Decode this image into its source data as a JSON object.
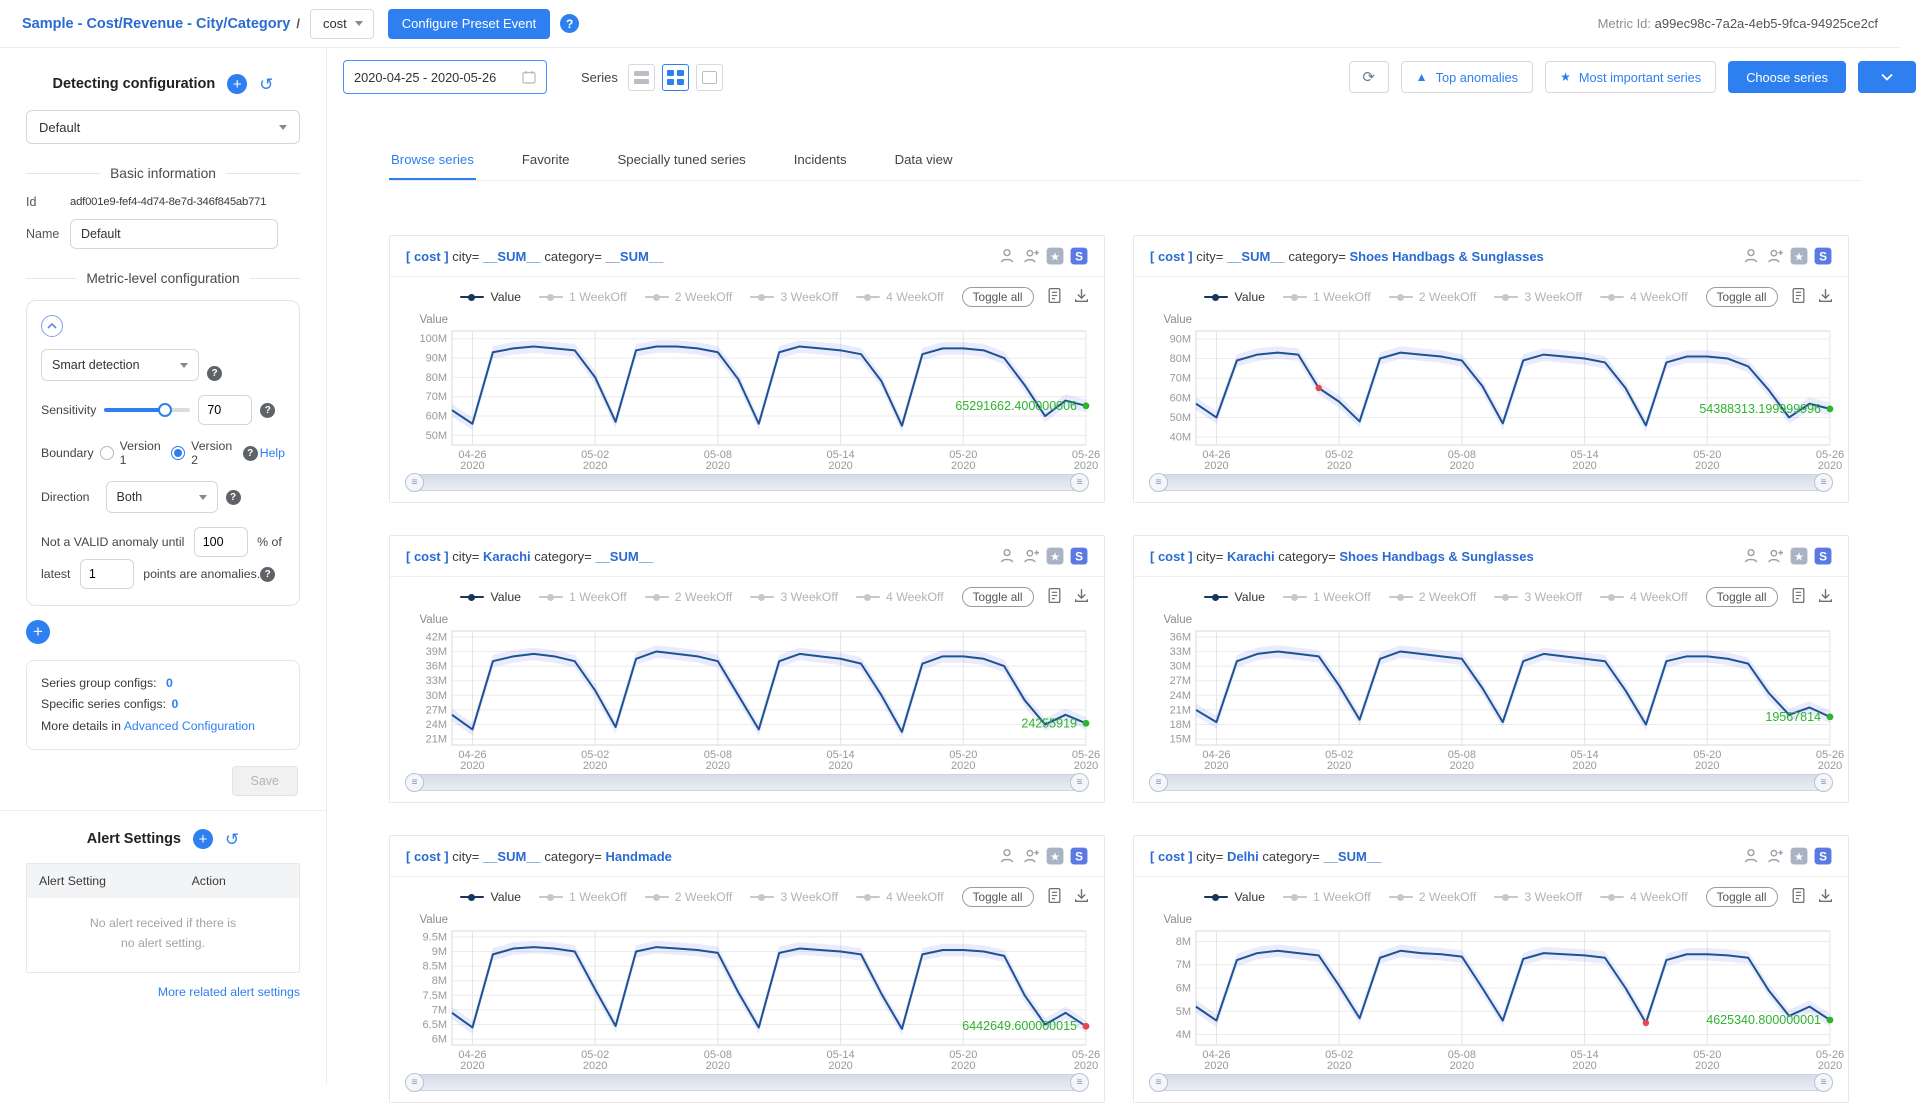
{
  "header": {
    "breadcrumb": "Sample - Cost/Revenue - City/Category",
    "slash": "/",
    "metric_selector": "cost",
    "configure_button": "Configure Preset Event",
    "help_icon": "?",
    "metric_id_label": "Metric Id:",
    "metric_id_value": "a99ec98c-7a2a-4eb5-9fca-94925ce2cf"
  },
  "sidebar": {
    "detecting_title": "Detecting configuration",
    "plus_icon": "+",
    "history_icon": "↺",
    "config_select": "Default",
    "basic_info_title": "Basic information",
    "id_label": "Id",
    "id_value": "adf001e9-fef4-4d74-8e7d-346f845ab771",
    "name_label": "Name",
    "name_value": "Default",
    "metric_config_title": "Metric-level configuration",
    "detection_select": "Smart detection",
    "q_icon": "?",
    "sensitivity_label": "Sensitivity",
    "sensitivity_value": "70",
    "boundary_label": "Boundary",
    "version1": "Version 1",
    "version2": "Version 2",
    "help_link": "Help",
    "direction_label": "Direction",
    "direction_value": "Both",
    "valid_text_1": "Not a VALID anomaly until",
    "valid_pct": "100",
    "valid_text_2": "% of",
    "valid_text_3": "latest",
    "valid_points": "1",
    "valid_text_4": "points are anomalies.",
    "series_group_label": "Series group configs:",
    "series_group_value": "0",
    "specific_series_label": "Specific series configs:",
    "specific_series_value": "0",
    "more_details": "More details in",
    "advanced_link": "Advanced Configuration",
    "save_button": "Save",
    "alert_title": "Alert Settings",
    "alert_col_1": "Alert Setting",
    "alert_col_2": "Action",
    "alert_empty_1": "No alert received if there is",
    "alert_empty_2": "no alert setting.",
    "alert_more_link": "More related alert settings"
  },
  "toolbar": {
    "date_range": "2020-04-25 - 2020-05-26",
    "series_label": "Series",
    "refresh_icon": "⟳",
    "top_anomalies_icon": "▲",
    "top_anomalies": "Top anomalies",
    "most_important_icon": "★",
    "most_important": "Most important series",
    "choose_series": "Choose series"
  },
  "tabs": [
    {
      "label": "Browse series",
      "active": true
    },
    {
      "label": "Favorite",
      "active": false
    },
    {
      "label": "Specially tuned series",
      "active": false
    },
    {
      "label": "Incidents",
      "active": false
    },
    {
      "label": "Data view",
      "active": false
    }
  ],
  "legend": {
    "items": [
      {
        "label": "Value",
        "color": "#16365c",
        "text_color": "#333333"
      },
      {
        "label": "1 WeekOff",
        "color": "#c8c8c8",
        "text_color": "#b3b3b3"
      },
      {
        "label": "2 WeekOff",
        "color": "#c8c8c8",
        "text_color": "#b3b3b3"
      },
      {
        "label": "3 WeekOff",
        "color": "#c8c8c8",
        "text_color": "#b3b3b3"
      },
      {
        "label": "4 WeekOff",
        "color": "#c8c8c8",
        "text_color": "#b3b3b3"
      }
    ],
    "toggle_all": "Toggle all"
  },
  "colors": {
    "accent": "#2e7ff0",
    "line": "#1d5393",
    "band": "#7d84ed",
    "green": "#2db32d",
    "red": "#e5484d"
  },
  "chart_data": [
    {
      "type": "line",
      "title": "[ cost ]",
      "dims": [
        {
          "key": "city=",
          "value": "__SUM__"
        },
        {
          "key": "category=",
          "value": "__SUM__"
        }
      ],
      "ylabel": "Value",
      "yticks": [
        {
          "label": "100M",
          "v": 100
        },
        {
          "label": "90M",
          "v": 90
        },
        {
          "label": "80M",
          "v": 80
        },
        {
          "label": "70M",
          "v": 70
        },
        {
          "label": "60M",
          "v": 60
        },
        {
          "label": "50M",
          "v": 50
        }
      ],
      "ylim": [
        45,
        104
      ],
      "xticks": [
        {
          "label": "04-26",
          "year": "2020",
          "i": 1
        },
        {
          "label": "05-02",
          "year": "2020",
          "i": 7
        },
        {
          "label": "05-08",
          "year": "2020",
          "i": 13
        },
        {
          "label": "05-14",
          "year": "2020",
          "i": 19
        },
        {
          "label": "05-20",
          "year": "2020",
          "i": 25
        },
        {
          "label": "05-26",
          "year": "2020",
          "i": 31
        }
      ],
      "values": [
        63,
        56,
        93,
        95,
        96,
        95,
        94,
        80,
        57,
        94,
        96,
        96,
        95,
        93,
        79,
        56,
        93,
        96,
        95,
        94,
        92,
        78,
        55,
        92,
        95,
        95,
        94,
        90,
        76,
        60,
        68,
        65.2916624
      ],
      "value_label": "65291662.400000006",
      "end_dot_color": "#2db32d",
      "anomalies": []
    },
    {
      "type": "line",
      "title": "[ cost ]",
      "dims": [
        {
          "key": "city=",
          "value": "__SUM__"
        },
        {
          "key": "category=",
          "value": "Shoes Handbags & Sunglasses"
        }
      ],
      "ylabel": "Value",
      "yticks": [
        {
          "label": "90M",
          "v": 90
        },
        {
          "label": "80M",
          "v": 80
        },
        {
          "label": "70M",
          "v": 70
        },
        {
          "label": "60M",
          "v": 60
        },
        {
          "label": "50M",
          "v": 50
        },
        {
          "label": "40M",
          "v": 40
        }
      ],
      "ylim": [
        36,
        94
      ],
      "xticks": [
        {
          "label": "04-26",
          "year": "2020",
          "i": 1
        },
        {
          "label": "05-02",
          "year": "2020",
          "i": 7
        },
        {
          "label": "05-08",
          "year": "2020",
          "i": 13
        },
        {
          "label": "05-14",
          "year": "2020",
          "i": 19
        },
        {
          "label": "05-20",
          "year": "2020",
          "i": 25
        },
        {
          "label": "05-26",
          "year": "2020",
          "i": 31
        }
      ],
      "values": [
        57,
        50,
        79,
        82,
        83,
        82,
        65,
        58,
        48,
        80,
        83,
        82,
        81,
        79,
        66,
        47,
        79,
        82,
        81,
        80,
        78,
        65,
        46,
        78,
        81,
        81,
        80,
        76,
        64,
        50,
        57,
        54.3883132
      ],
      "value_label": "54388313.199999996",
      "end_dot_color": "#2db32d",
      "anomalies": [
        6
      ]
    },
    {
      "type": "line",
      "title": "[ cost ]",
      "dims": [
        {
          "key": "city=",
          "value": "Karachi"
        },
        {
          "key": "category=",
          "value": "__SUM__"
        }
      ],
      "ylabel": "Value",
      "yticks": [
        {
          "label": "42M",
          "v": 42
        },
        {
          "label": "39M",
          "v": 39
        },
        {
          "label": "36M",
          "v": 36
        },
        {
          "label": "33M",
          "v": 33
        },
        {
          "label": "30M",
          "v": 30
        },
        {
          "label": "27M",
          "v": 27
        },
        {
          "label": "24M",
          "v": 24
        },
        {
          "label": "21M",
          "v": 21
        }
      ],
      "ylim": [
        19.8,
        43.2
      ],
      "xticks": [
        {
          "label": "04-26",
          "year": "2020",
          "i": 1
        },
        {
          "label": "05-02",
          "year": "2020",
          "i": 7
        },
        {
          "label": "05-08",
          "year": "2020",
          "i": 13
        },
        {
          "label": "05-14",
          "year": "2020",
          "i": 19
        },
        {
          "label": "05-20",
          "year": "2020",
          "i": 25
        },
        {
          "label": "05-26",
          "year": "2020",
          "i": 31
        }
      ],
      "values": [
        26,
        23,
        37,
        38,
        38.5,
        38,
        37,
        31,
        23.5,
        37.5,
        39,
        38.5,
        38,
        37,
        30,
        23,
        37,
        38.5,
        38,
        37.5,
        36.5,
        30,
        22.5,
        36.5,
        38,
        38,
        37.5,
        36,
        29,
        24,
        26,
        24.255919
      ],
      "value_label": "24255919",
      "end_dot_color": "#2db32d",
      "anomalies": []
    },
    {
      "type": "line",
      "title": "[ cost ]",
      "dims": [
        {
          "key": "city=",
          "value": "Karachi"
        },
        {
          "key": "category=",
          "value": "Shoes Handbags & Sunglasses"
        }
      ],
      "ylabel": "Value",
      "yticks": [
        {
          "label": "36M",
          "v": 36
        },
        {
          "label": "33M",
          "v": 33
        },
        {
          "label": "30M",
          "v": 30
        },
        {
          "label": "27M",
          "v": 27
        },
        {
          "label": "24M",
          "v": 24
        },
        {
          "label": "21M",
          "v": 21
        },
        {
          "label": "18M",
          "v": 18
        },
        {
          "label": "15M",
          "v": 15
        }
      ],
      "ylim": [
        13.8,
        37.2
      ],
      "xticks": [
        {
          "label": "04-26",
          "year": "2020",
          "i": 1
        },
        {
          "label": "05-02",
          "year": "2020",
          "i": 7
        },
        {
          "label": "05-08",
          "year": "2020",
          "i": 13
        },
        {
          "label": "05-14",
          "year": "2020",
          "i": 19
        },
        {
          "label": "05-20",
          "year": "2020",
          "i": 25
        },
        {
          "label": "05-26",
          "year": "2020",
          "i": 31
        }
      ],
      "values": [
        21,
        18.5,
        31,
        32.5,
        33,
        32.5,
        32,
        26,
        19,
        31.5,
        33,
        32.5,
        32,
        31.5,
        25.5,
        18.5,
        31,
        32.5,
        32,
        31.5,
        31,
        25,
        18,
        31,
        32,
        32,
        31.5,
        30.5,
        24.5,
        20,
        21.5,
        19.567814
      ],
      "value_label": "19567814",
      "end_dot_color": "#2db32d",
      "anomalies": []
    },
    {
      "type": "line",
      "title": "[ cost ]",
      "dims": [
        {
          "key": "city=",
          "value": "__SUM__"
        },
        {
          "key": "category=",
          "value": "Handmade"
        }
      ],
      "ylabel": "Value",
      "yticks": [
        {
          "label": "9.5M",
          "v": 9.5
        },
        {
          "label": "9M",
          "v": 9
        },
        {
          "label": "8.5M",
          "v": 8.5
        },
        {
          "label": "8M",
          "v": 8
        },
        {
          "label": "7.5M",
          "v": 7.5
        },
        {
          "label": "7M",
          "v": 7
        },
        {
          "label": "6.5M",
          "v": 6.5
        },
        {
          "label": "6M",
          "v": 6
        }
      ],
      "ylim": [
        5.8,
        9.7
      ],
      "xticks": [
        {
          "label": "04-26",
          "year": "2020",
          "i": 1
        },
        {
          "label": "05-02",
          "year": "2020",
          "i": 7
        },
        {
          "label": "05-08",
          "year": "2020",
          "i": 13
        },
        {
          "label": "05-14",
          "year": "2020",
          "i": 19
        },
        {
          "label": "05-20",
          "year": "2020",
          "i": 25
        },
        {
          "label": "05-26",
          "year": "2020",
          "i": 31
        }
      ],
      "values": [
        6.9,
        6.4,
        8.9,
        9.1,
        9.15,
        9.1,
        9.0,
        7.7,
        6.45,
        9.0,
        9.15,
        9.1,
        9.05,
        8.95,
        7.6,
        6.4,
        8.95,
        9.1,
        9.05,
        9.0,
        8.9,
        7.55,
        6.35,
        8.9,
        9.05,
        9.05,
        9.0,
        8.85,
        7.5,
        6.5,
        6.9,
        6.4426496
      ],
      "value_label": "6442649.600000015",
      "end_dot_color": "#e5484d",
      "anomalies": []
    },
    {
      "type": "line",
      "title": "[ cost ]",
      "dims": [
        {
          "key": "city=",
          "value": "Delhi"
        },
        {
          "key": "category=",
          "value": "__SUM__"
        }
      ],
      "ylabel": "Value",
      "yticks": [
        {
          "label": "8M",
          "v": 8
        },
        {
          "label": "7M",
          "v": 7
        },
        {
          "label": "6M",
          "v": 6
        },
        {
          "label": "5M",
          "v": 5
        },
        {
          "label": "4M",
          "v": 4
        }
      ],
      "ylim": [
        3.55,
        8.45
      ],
      "xticks": [
        {
          "label": "04-26",
          "year": "2020",
          "i": 1
        },
        {
          "label": "05-02",
          "year": "2020",
          "i": 7
        },
        {
          "label": "05-08",
          "year": "2020",
          "i": 13
        },
        {
          "label": "05-14",
          "year": "2020",
          "i": 19
        },
        {
          "label": "05-20",
          "year": "2020",
          "i": 25
        },
        {
          "label": "05-26",
          "year": "2020",
          "i": 31
        }
      ],
      "values": [
        5.2,
        4.6,
        7.2,
        7.5,
        7.6,
        7.5,
        7.4,
        6.1,
        4.7,
        7.3,
        7.6,
        7.5,
        7.45,
        7.35,
        6.0,
        4.6,
        7.25,
        7.5,
        7.45,
        7.4,
        7.3,
        6.0,
        4.5,
        7.2,
        7.45,
        7.45,
        7.4,
        7.3,
        5.9,
        4.8,
        5.2,
        4.6253408
      ],
      "value_label": "4625340.800000001",
      "end_dot_color": "#2db32d",
      "anomalies": [
        22
      ]
    }
  ]
}
